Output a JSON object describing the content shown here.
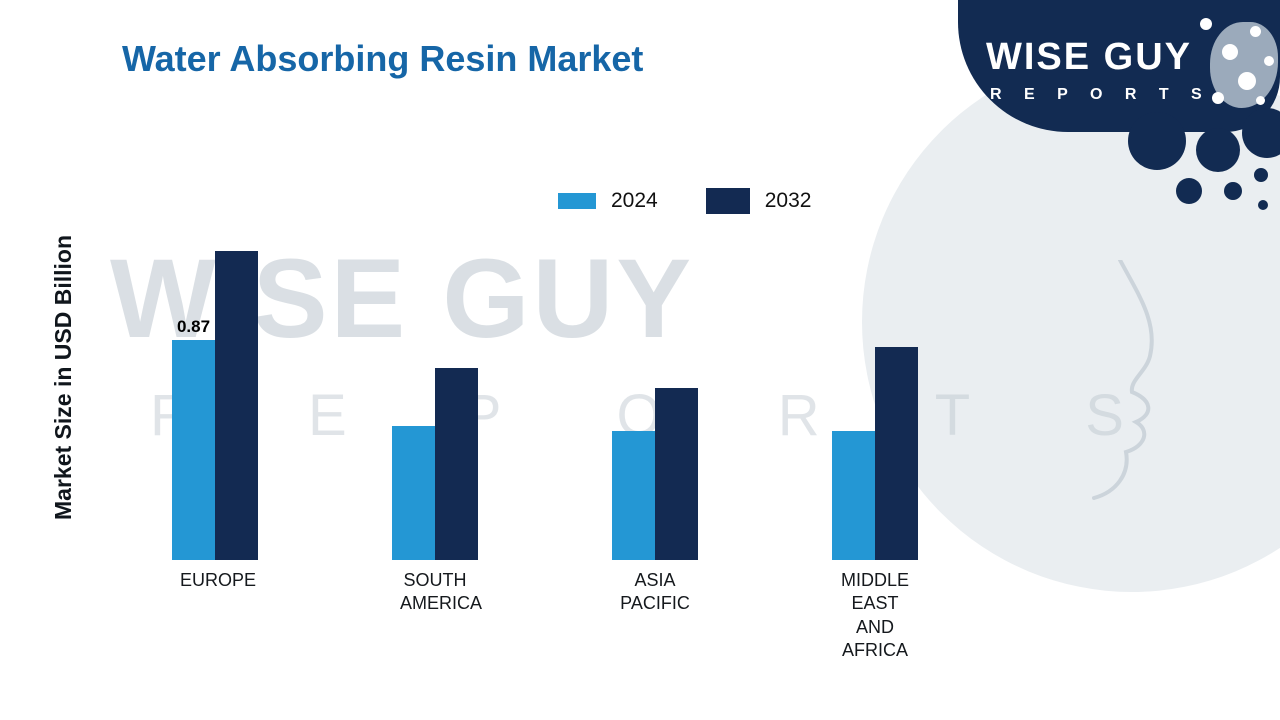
{
  "title": "Water Absorbing Resin Market",
  "logo": {
    "name_line": "WISE GUY",
    "sub_line": "R E P O R T S"
  },
  "watermark": {
    "name_line": "WISE GUY",
    "sub_line": "R E P O R T S"
  },
  "ylabel": "Market Size in USD Billion",
  "colors": {
    "title": "#1666a7",
    "bar_2024": "#2497d4",
    "bar_2032": "#132a52",
    "logo_background": "#122b52",
    "watermark": "#b7c1ca"
  },
  "chart_data": {
    "type": "bar",
    "title": "Water Absorbing Resin Market",
    "ylabel": "Market Size in USD Billion",
    "categories": [
      "EUROPE",
      "SOUTH AMERICA",
      "ASIA PACIFIC",
      "MIDDLE EAST AND AFRICA"
    ],
    "series": [
      {
        "name": "2024",
        "color": "#2497d4",
        "values": [
          0.87,
          0.53,
          0.51,
          0.51
        ]
      },
      {
        "name": "2032",
        "color": "#132a52",
        "values": [
          1.22,
          0.76,
          0.68,
          0.84
        ]
      }
    ],
    "ylim": [
      0,
      1.4
    ],
    "grid": false,
    "legend_position": "top-center",
    "annotations": [
      {
        "category_index": 0,
        "series_index": 0,
        "text": "0.87"
      }
    ]
  }
}
